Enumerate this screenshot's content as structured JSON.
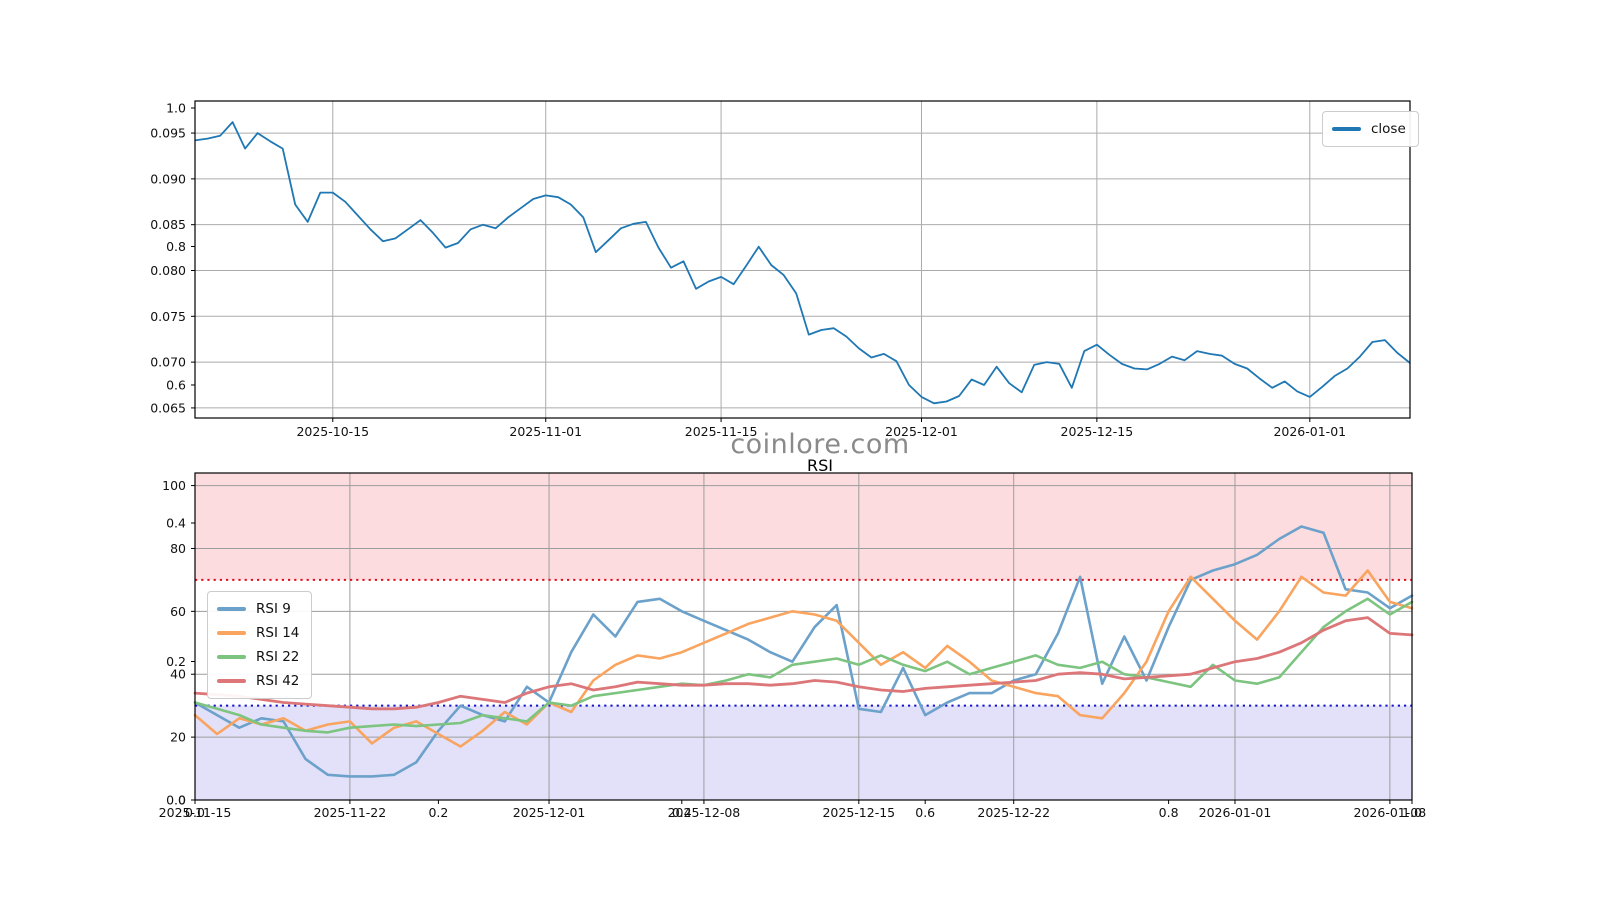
{
  "watermark": "coinlore.com",
  "chart_data": [
    {
      "type": "line",
      "panel": "price",
      "title": "",
      "legend_position": "upper right",
      "x_start_date": "2025-10-04",
      "x_unit": "day",
      "grid": true,
      "ylim": [
        0.0639,
        0.0985
      ],
      "x_ticks": [
        {
          "d": 11,
          "label": "2025-10-15"
        },
        {
          "d": 28,
          "label": "2025-11-01"
        },
        {
          "d": 42,
          "label": "2025-11-15"
        },
        {
          "d": 58,
          "label": "2025-12-01"
        },
        {
          "d": 72,
          "label": "2025-12-15"
        },
        {
          "d": 89,
          "label": "2026-01-01"
        }
      ],
      "y_ticks": [
        {
          "v": 0.065,
          "label": "0.065"
        },
        {
          "v": 0.07,
          "label": "0.070"
        },
        {
          "v": 0.075,
          "label": "0.075"
        },
        {
          "v": 0.08,
          "label": "0.080"
        },
        {
          "v": 0.085,
          "label": "0.085"
        },
        {
          "v": 0.09,
          "label": "0.090"
        },
        {
          "v": 0.095,
          "label": "0.095"
        }
      ],
      "y_ticks_twin": [
        {
          "v": 1.0,
          "label": "1.0"
        },
        {
          "v": 0.8,
          "label": "0.8"
        },
        {
          "v": 0.6,
          "label": "0.6"
        }
      ],
      "series": [
        {
          "name": "close",
          "color": "#1f77b4",
          "width": 1.8,
          "values": [
            0.0942,
            0.0944,
            0.0947,
            0.0962,
            0.0933,
            0.095,
            0.0941,
            0.0933,
            0.0872,
            0.0853,
            0.0885,
            0.0885,
            0.0875,
            0.086,
            0.0845,
            0.0832,
            0.0835,
            0.0845,
            0.0855,
            0.0841,
            0.0825,
            0.083,
            0.0845,
            0.085,
            0.0846,
            0.0858,
            0.0868,
            0.0878,
            0.0882,
            0.088,
            0.0872,
            0.0858,
            0.082,
            0.0833,
            0.0846,
            0.0851,
            0.0853,
            0.0825,
            0.0803,
            0.081,
            0.078,
            0.0788,
            0.0793,
            0.0785,
            0.0805,
            0.0826,
            0.0806,
            0.0795,
            0.0775,
            0.073,
            0.0735,
            0.0737,
            0.0728,
            0.0715,
            0.0705,
            0.0709,
            0.0701,
            0.0675,
            0.0662,
            0.0655,
            0.0657,
            0.0663,
            0.0681,
            0.0675,
            0.0695,
            0.0677,
            0.0667,
            0.0697,
            0.07,
            0.0698,
            0.0672,
            0.0712,
            0.0719,
            0.0708,
            0.0698,
            0.0693,
            0.0692,
            0.0698,
            0.0706,
            0.0702,
            0.0712,
            0.0709,
            0.0707,
            0.0698,
            0.0693,
            0.0682,
            0.0672,
            0.0679,
            0.0668,
            0.0662,
            0.0673,
            0.0685,
            0.0693,
            0.0706,
            0.0722,
            0.0724,
            0.071,
            0.0699
          ]
        }
      ]
    },
    {
      "type": "line",
      "panel": "rsi",
      "title": "RSI",
      "legend_position": "center left",
      "x_start_date": "2025-11-15",
      "x_unit": "day",
      "grid": true,
      "ylim": [
        0,
        104
      ],
      "overbought_level": 70,
      "oversold_level": 30,
      "band_colors": {
        "overbought": "rgba(242,95,105,0.22)",
        "oversold": "rgba(62,52,212,0.15)"
      },
      "threshold_colors": {
        "overbought": "#dd0f1e",
        "oversold": "#1414cc"
      },
      "x_ticks_dates": [
        {
          "d": 0,
          "label": "2025-11-15"
        },
        {
          "d": 7,
          "label": "2025-11-22"
        },
        {
          "d": 16,
          "label": "2025-12-01"
        },
        {
          "d": 23,
          "label": "2025-12-08"
        },
        {
          "d": 30,
          "label": "2025-12-15"
        },
        {
          "d": 37,
          "label": "2025-12-22"
        },
        {
          "d": 47,
          "label": "2026-01-01"
        },
        {
          "d": 54,
          "label": "2026-01-08"
        }
      ],
      "x_ticks_fraction": [
        {
          "v": 0.0,
          "label": "0.0"
        },
        {
          "v": 0.2,
          "label": "0.2"
        },
        {
          "v": 0.4,
          "label": "0.4"
        },
        {
          "v": 0.6,
          "label": "0.6"
        },
        {
          "v": 0.8,
          "label": "0.8"
        },
        {
          "v": 1.0,
          "label": "1.0"
        }
      ],
      "y_ticks": [
        {
          "v": 0,
          "label": "0"
        },
        {
          "v": 20,
          "label": "20"
        },
        {
          "v": 40,
          "label": "40"
        },
        {
          "v": 60,
          "label": "60"
        },
        {
          "v": 80,
          "label": "80"
        },
        {
          "v": 100,
          "label": "100"
        }
      ],
      "y_ticks_twin": [
        {
          "v": 0.0,
          "label": "0.0"
        },
        {
          "v": 0.2,
          "label": "0.2"
        },
        {
          "v": 0.4,
          "label": "0.4"
        }
      ],
      "series": [
        {
          "name": "RSI 9",
          "color": "#6ba1ca",
          "width": 2.6,
          "values": [
            31,
            27,
            23,
            26,
            25,
            13,
            8,
            7.5,
            7.5,
            8,
            12,
            22,
            30,
            27,
            25,
            36,
            31,
            47,
            59,
            52,
            63,
            64,
            60,
            57,
            54,
            51,
            47,
            44,
            55,
            62,
            29,
            28,
            42,
            27,
            31,
            34,
            34,
            38,
            40,
            53,
            71,
            37,
            52,
            38,
            55,
            70,
            73,
            75,
            78,
            83,
            87,
            85,
            67,
            66,
            61,
            65
          ]
        },
        {
          "name": "RSI 14",
          "color": "#f9a45f",
          "width": 2.6,
          "values": [
            27,
            21,
            26,
            24,
            26,
            22,
            24,
            25,
            18,
            23,
            25,
            21,
            17,
            22,
            28,
            24,
            31,
            28,
            38,
            43,
            46,
            45,
            47,
            50,
            53,
            56,
            58,
            60,
            59,
            57,
            50,
            43,
            47,
            42,
            49,
            44,
            38,
            36,
            34,
            33,
            27,
            26,
            34,
            44,
            60,
            71,
            64,
            57,
            51,
            60,
            71,
            66,
            65,
            73,
            63,
            61
          ]
        },
        {
          "name": "RSI 22",
          "color": "#7cc47f",
          "width": 2.6,
          "values": [
            31,
            29,
            27,
            24,
            23,
            22,
            21.5,
            23,
            23.5,
            24,
            23.5,
            24,
            24.5,
            27,
            26,
            25,
            31,
            30,
            33,
            34,
            35,
            36,
            37,
            36.5,
            38,
            40,
            39,
            43,
            44,
            45,
            43,
            46,
            43,
            41,
            44,
            40,
            42,
            44,
            46,
            43,
            42,
            44,
            40,
            39,
            37.5,
            36,
            43,
            38,
            37,
            39,
            47,
            55,
            60,
            64,
            59,
            63
          ]
        },
        {
          "name": "RSI 42",
          "color": "#dc7678",
          "width": 2.8,
          "values": [
            34,
            33.5,
            33,
            32,
            31,
            30.5,
            30,
            29.5,
            29,
            29,
            29.5,
            31,
            33,
            32,
            31,
            34,
            36,
            37,
            35,
            36,
            37.5,
            37,
            36.5,
            36.5,
            37,
            37,
            36.5,
            37,
            38,
            37.5,
            36,
            35,
            34.5,
            35.5,
            36,
            36.5,
            37,
            37.5,
            38,
            40,
            40.5,
            40,
            38.5,
            39,
            39.5,
            40,
            42,
            44,
            45,
            47,
            50,
            54,
            57,
            58,
            53,
            52.5
          ]
        }
      ]
    }
  ]
}
